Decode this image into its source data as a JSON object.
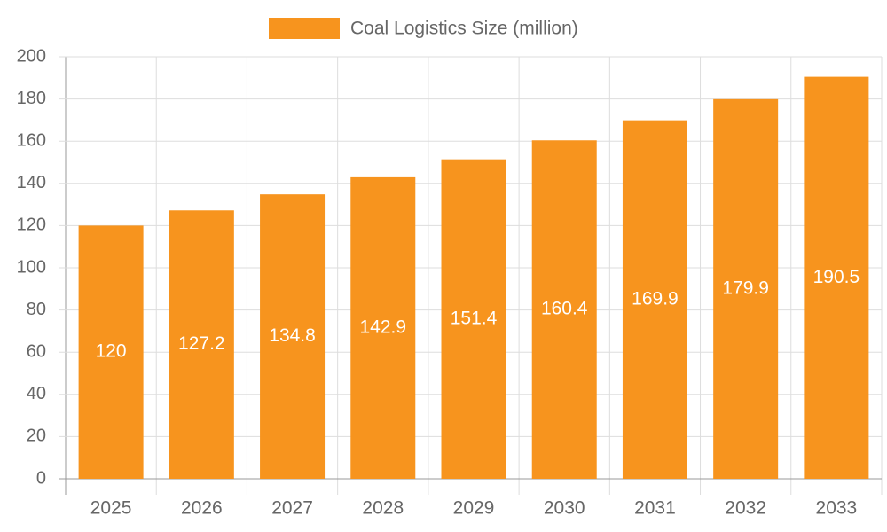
{
  "chart_data": {
    "type": "bar",
    "categories": [
      "2025",
      "2026",
      "2027",
      "2028",
      "2029",
      "2030",
      "2031",
      "2032",
      "2033"
    ],
    "series": [
      {
        "name": "Coal Logistics Size (million)",
        "color": "#f7941e",
        "values": [
          120,
          127.2,
          134.8,
          142.9,
          151.4,
          160.4,
          169.9,
          179.9,
          190.5
        ]
      }
    ],
    "ylim": [
      0,
      200
    ],
    "yticks": [
      0,
      20,
      40,
      60,
      80,
      100,
      120,
      140,
      160,
      180,
      200
    ],
    "grid": true,
    "legend": "top"
  }
}
